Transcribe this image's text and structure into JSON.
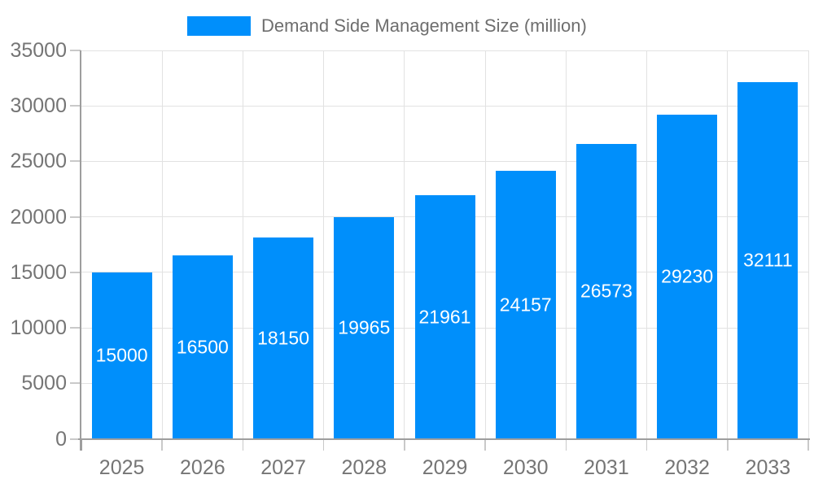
{
  "legend": {
    "label": "Demand Side Management Size (million)"
  },
  "chart_data": {
    "type": "bar",
    "title": "",
    "categories": [
      "2025",
      "2026",
      "2027",
      "2028",
      "2029",
      "2030",
      "2031",
      "2032",
      "2033"
    ],
    "series": [
      {
        "name": "Demand Side Management Size (million)",
        "values": [
          15000,
          16500,
          18150,
          19965,
          21961,
          24157,
          26573,
          29230,
          32111
        ]
      }
    ],
    "xlabel": "",
    "ylabel": "",
    "ylim": [
      0,
      35000
    ],
    "yticks": [
      0,
      5000,
      10000,
      15000,
      20000,
      25000,
      30000,
      35000
    ],
    "grid": true,
    "legend_position": "top",
    "value_labels": "inside-center"
  },
  "colors": {
    "bar": "#008FFB",
    "bar_label": "#FFFFFF",
    "grid": "#E2E2E2",
    "axis": "#9E9E9E",
    "tick": "#C9C9C9",
    "label": "#757575",
    "legend_text": "#6E6E6E",
    "background": "#FFFFFF"
  }
}
